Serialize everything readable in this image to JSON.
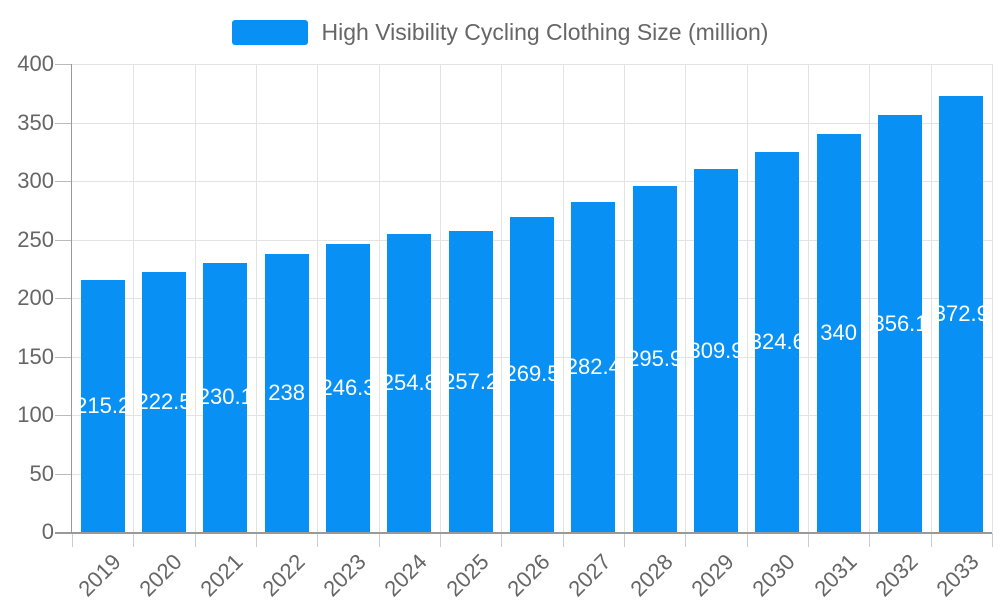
{
  "legend": {
    "label": "High Visibility Cycling Clothing Size (million)"
  },
  "colors": {
    "bar": "#0890f5",
    "grid_line": "#e3e3e3",
    "axis_line": "#999999",
    "tick_line": "#cccccc",
    "axis_text": "#666666",
    "bar_label_text": "#ffffff",
    "background": "#ffffff"
  },
  "chart_data": {
    "type": "bar",
    "title": "High Visibility Cycling Clothing Size (million)",
    "categories": [
      "2019",
      "2020",
      "2021",
      "2022",
      "2023",
      "2024",
      "2025",
      "2026",
      "2027",
      "2028",
      "2029",
      "2030",
      "2031",
      "2032",
      "2033"
    ],
    "values": [
      215.2,
      222.5,
      230.1,
      238,
      246.3,
      254.8,
      257.2,
      269.5,
      282.4,
      295.9,
      309.9,
      324.6,
      340,
      356.1,
      372.9
    ],
    "bar_labels": [
      "215.2",
      "222.5",
      "230.1",
      "238",
      "246.3",
      "254.8",
      "257.2",
      "269.5",
      "282.4",
      "295.9",
      "309.9",
      "324.6",
      "340",
      "356.1",
      "372.9"
    ],
    "xlabel": "",
    "ylabel": "",
    "ylim": [
      0,
      400
    ],
    "y_ticks": [
      0,
      50,
      100,
      150,
      200,
      250,
      300,
      350,
      400
    ],
    "grid": true,
    "legend_position": "top-center",
    "bar_label_position": "inside-middle",
    "x_label_rotation": 45
  }
}
